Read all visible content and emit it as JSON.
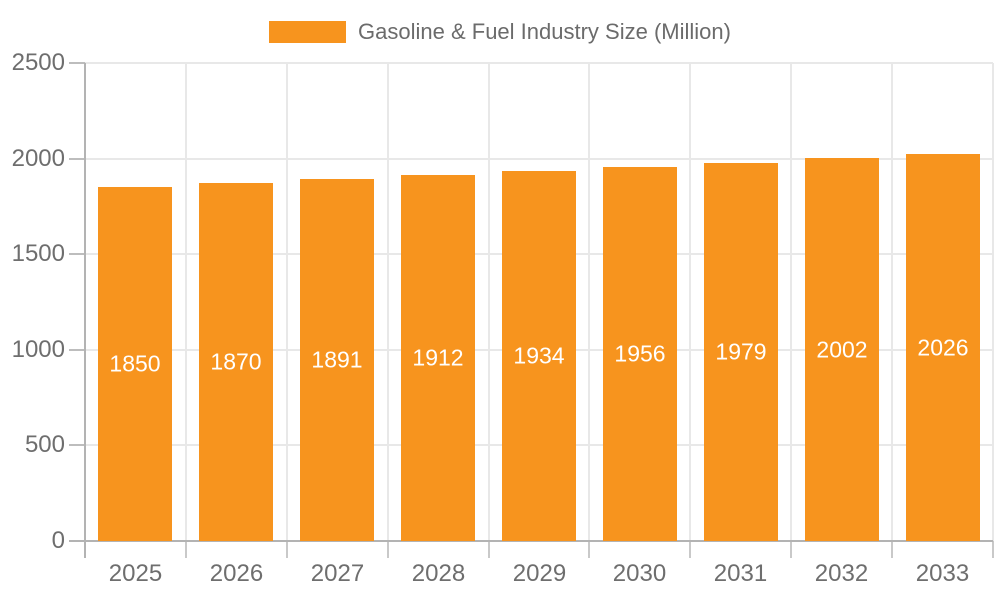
{
  "chart_data": {
    "type": "bar",
    "title": "Gasoline & Fuel Industry Size (Million)",
    "series_name": "Gasoline & Fuel Industry Size (Million)",
    "categories": [
      "2025",
      "2026",
      "2027",
      "2028",
      "2029",
      "2030",
      "2031",
      "2032",
      "2033"
    ],
    "values": [
      1850,
      1870,
      1891,
      1912,
      1934,
      1956,
      1979,
      2002,
      2026
    ],
    "xlabel": "",
    "ylabel": "",
    "ylim": [
      0,
      2500
    ],
    "y_ticks": [
      0,
      500,
      1000,
      1500,
      2000,
      2500
    ],
    "grid": true,
    "legend_position": "top",
    "value_labels_position": "inside-center",
    "colors": {
      "bar": "#f7941e",
      "value_label": "#ffffff",
      "axis_text": "#6e6e6e",
      "legend_text": "#6b6b6b",
      "axis_line": "#b3b3b3",
      "gridline": "#e8e8e8"
    }
  }
}
